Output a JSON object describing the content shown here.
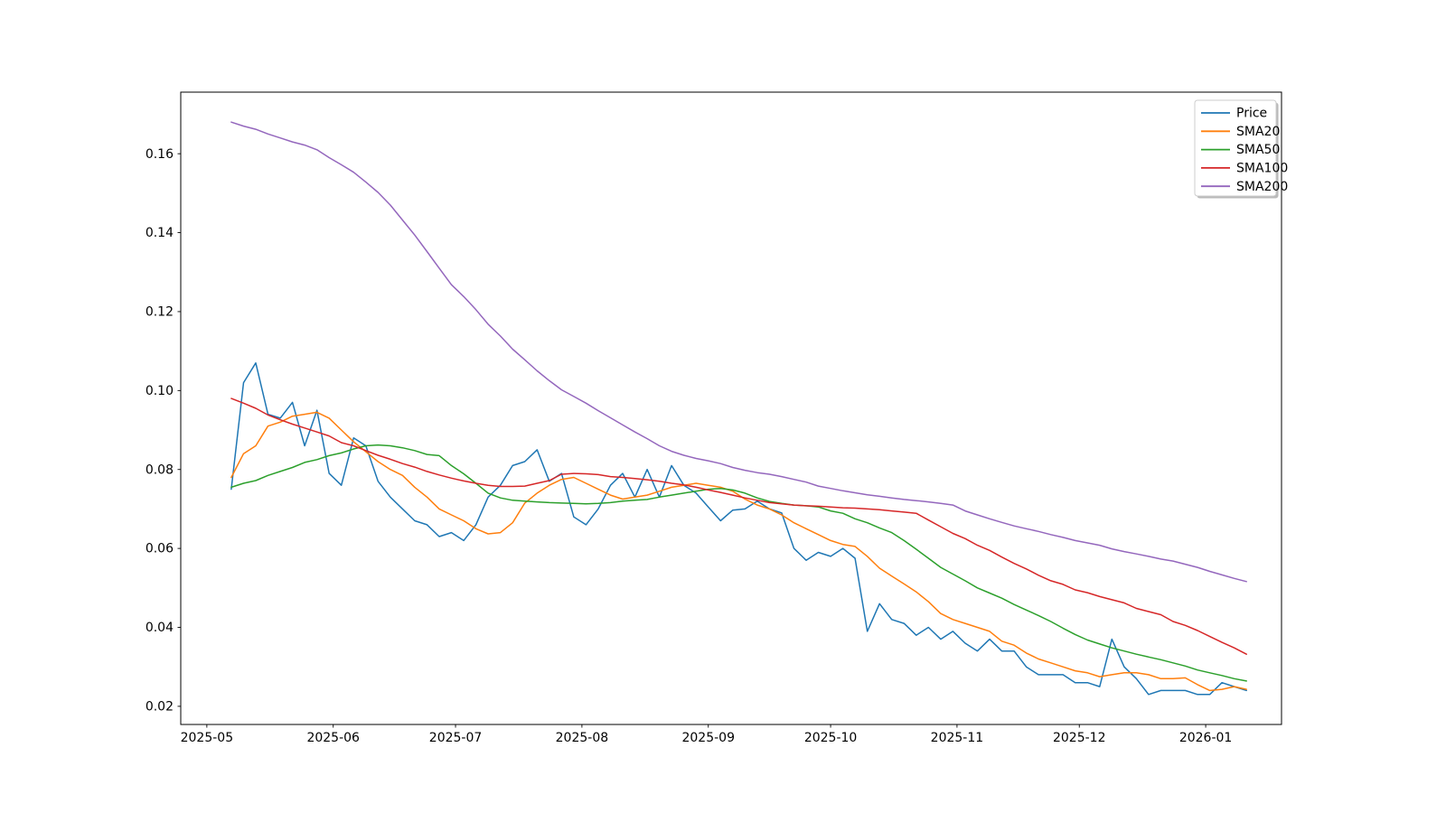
{
  "figure": {
    "background": "#ffffff",
    "axis_color": "#000000",
    "legend_border_color": "#cccccc",
    "legend_background": "#ffffff",
    "legend_shadow_color": "#bababa"
  },
  "chart_data": {
    "type": "line",
    "title": "",
    "xlabel": "",
    "ylabel": "",
    "grid": false,
    "legend_position": "upper right",
    "x_unit": "days since 2025-05-07",
    "x_start_day": 0,
    "x_step_days": 3,
    "n_points": 84,
    "xlim_days": [
      -12.4,
      257.6
    ],
    "ylim": [
      0.0154,
      0.1756
    ],
    "x_ticks": [
      {
        "day": -6,
        "label": "2025-05"
      },
      {
        "day": 25,
        "label": "2025-06"
      },
      {
        "day": 55,
        "label": "2025-07"
      },
      {
        "day": 86,
        "label": "2025-08"
      },
      {
        "day": 117,
        "label": "2025-09"
      },
      {
        "day": 147,
        "label": "2025-10"
      },
      {
        "day": 178,
        "label": "2025-11"
      },
      {
        "day": 208,
        "label": "2025-12"
      },
      {
        "day": 239,
        "label": "2026-01"
      }
    ],
    "y_ticks": [
      {
        "value": 0.02,
        "label": "0.02"
      },
      {
        "value": 0.04,
        "label": "0.04"
      },
      {
        "value": 0.06,
        "label": "0.06"
      },
      {
        "value": 0.08,
        "label": "0.08"
      },
      {
        "value": 0.1,
        "label": "0.10"
      },
      {
        "value": 0.12,
        "label": "0.12"
      },
      {
        "value": 0.14,
        "label": "0.14"
      },
      {
        "value": 0.16,
        "label": "0.16"
      }
    ],
    "series": [
      {
        "name": "Price",
        "color": "#1f77b4",
        "values": [
          0.075,
          0.102,
          0.107,
          0.094,
          0.093,
          0.097,
          0.086,
          0.095,
          0.079,
          0.076,
          0.088,
          0.086,
          0.077,
          0.073,
          0.07,
          0.067,
          0.066,
          0.063,
          0.064,
          0.062,
          0.066,
          0.073,
          0.076,
          0.081,
          0.082,
          0.085,
          0.077,
          0.079,
          0.068,
          0.066,
          0.07,
          0.076,
          0.079,
          0.073,
          0.08,
          0.073,
          0.081,
          0.076,
          0.074,
          0.0705,
          0.067,
          0.0697,
          0.07,
          0.072,
          0.07,
          0.069,
          0.06,
          0.057,
          0.059,
          0.058,
          0.06,
          0.0575,
          0.039,
          0.046,
          0.042,
          0.041,
          0.038,
          0.04,
          0.037,
          0.039,
          0.036,
          0.034,
          0.037,
          0.034,
          0.034,
          0.03,
          0.028,
          0.028,
          0.028,
          0.026,
          0.026,
          0.025,
          0.037,
          0.03,
          0.027,
          0.023,
          0.024,
          0.024,
          0.024,
          0.023,
          0.023,
          0.026,
          0.025,
          0.024
        ]
      },
      {
        "name": "SMA20",
        "color": "#ff7f0e",
        "values": [
          0.078,
          0.084,
          0.086,
          0.091,
          0.092,
          0.0935,
          0.094,
          0.0945,
          0.093,
          0.09,
          0.087,
          0.0845,
          0.082,
          0.08,
          0.0785,
          0.0755,
          0.073,
          0.07,
          0.0685,
          0.067,
          0.065,
          0.0637,
          0.064,
          0.0665,
          0.0715,
          0.074,
          0.076,
          0.0775,
          0.078,
          0.0765,
          0.075,
          0.0735,
          0.0725,
          0.073,
          0.0735,
          0.0745,
          0.0755,
          0.076,
          0.0765,
          0.076,
          0.0755,
          0.0745,
          0.0725,
          0.071,
          0.07,
          0.0685,
          0.0665,
          0.065,
          0.0635,
          0.062,
          0.061,
          0.0605,
          0.058,
          0.055,
          0.053,
          0.051,
          0.049,
          0.0465,
          0.0435,
          0.042,
          0.041,
          0.04,
          0.039,
          0.0365,
          0.0355,
          0.0335,
          0.032,
          0.031,
          0.03,
          0.029,
          0.0285,
          0.0275,
          0.028,
          0.0285,
          0.0285,
          0.028,
          0.027,
          0.027,
          0.0272,
          0.0255,
          0.024,
          0.0243,
          0.025,
          0.0243
        ]
      },
      {
        "name": "SMA50",
        "color": "#2ca02c",
        "values": [
          0.0755,
          0.0765,
          0.0772,
          0.0785,
          0.0795,
          0.0805,
          0.0818,
          0.0825,
          0.0835,
          0.0842,
          0.0852,
          0.086,
          0.0862,
          0.086,
          0.0855,
          0.0848,
          0.0838,
          0.0835,
          0.081,
          0.0789,
          0.0765,
          0.074,
          0.0728,
          0.0722,
          0.072,
          0.0718,
          0.0716,
          0.0715,
          0.0714,
          0.0713,
          0.0714,
          0.0716,
          0.072,
          0.0722,
          0.0724,
          0.073,
          0.0735,
          0.074,
          0.0745,
          0.075,
          0.0752,
          0.0748,
          0.074,
          0.0728,
          0.0719,
          0.0714,
          0.071,
          0.0708,
          0.0705,
          0.0695,
          0.0689,
          0.0675,
          0.0665,
          0.0652,
          0.064,
          0.062,
          0.0598,
          0.0575,
          0.0552,
          0.0535,
          0.0518,
          0.05,
          0.0487,
          0.0474,
          0.0458,
          0.0444,
          0.043,
          0.0415,
          0.0398,
          0.0382,
          0.0368,
          0.0358,
          0.0348,
          0.034,
          0.0332,
          0.0325,
          0.0318,
          0.031,
          0.0302,
          0.0292,
          0.0285,
          0.0278,
          0.027,
          0.0264
        ]
      },
      {
        "name": "SMA100",
        "color": "#d62728",
        "values": [
          0.098,
          0.0968,
          0.0955,
          0.0938,
          0.0926,
          0.0915,
          0.0905,
          0.0895,
          0.0885,
          0.0868,
          0.086,
          0.0848,
          0.0836,
          0.0826,
          0.0815,
          0.0806,
          0.0795,
          0.0786,
          0.0778,
          0.0771,
          0.0765,
          0.076,
          0.0757,
          0.0757,
          0.0758,
          0.0765,
          0.0772,
          0.0788,
          0.079,
          0.0789,
          0.0787,
          0.0782,
          0.078,
          0.0777,
          0.0774,
          0.077,
          0.0765,
          0.0761,
          0.0755,
          0.0748,
          0.0742,
          0.0735,
          0.0728,
          0.0722,
          0.0716,
          0.0713,
          0.071,
          0.0708,
          0.0707,
          0.0705,
          0.0703,
          0.0702,
          0.07,
          0.0698,
          0.0695,
          0.0692,
          0.0689,
          0.0672,
          0.0655,
          0.0638,
          0.0625,
          0.0608,
          0.0595,
          0.0578,
          0.0562,
          0.0548,
          0.0532,
          0.0518,
          0.0509,
          0.0495,
          0.0488,
          0.0478,
          0.047,
          0.0462,
          0.0448,
          0.044,
          0.0432,
          0.0415,
          0.0405,
          0.0392,
          0.0377,
          0.0362,
          0.0348,
          0.0332
        ]
      },
      {
        "name": "SMA200",
        "color": "#9467bd",
        "values": [
          0.168,
          0.167,
          0.1662,
          0.165,
          0.164,
          0.163,
          0.1622,
          0.161,
          0.159,
          0.1572,
          0.1553,
          0.1528,
          0.1502,
          0.147,
          0.1432,
          0.1394,
          0.1352,
          0.131,
          0.1268,
          0.1238,
          0.1205,
          0.1168,
          0.1138,
          0.1105,
          0.1078,
          0.105,
          0.1025,
          0.1002,
          0.0985,
          0.0968,
          0.0949,
          0.0931,
          0.0913,
          0.0895,
          0.0878,
          0.086,
          0.0846,
          0.0836,
          0.0828,
          0.0822,
          0.0815,
          0.0805,
          0.0798,
          0.0792,
          0.0788,
          0.0782,
          0.0775,
          0.0768,
          0.0758,
          0.0752,
          0.0746,
          0.0741,
          0.0736,
          0.0732,
          0.0728,
          0.0724,
          0.0721,
          0.0718,
          0.0714,
          0.071,
          0.0695,
          0.0685,
          0.0675,
          0.0666,
          0.0657,
          0.065,
          0.0643,
          0.0635,
          0.0628,
          0.062,
          0.0614,
          0.0608,
          0.0599,
          0.0592,
          0.0586,
          0.058,
          0.0573,
          0.0568,
          0.056,
          0.0552,
          0.0542,
          0.0533,
          0.0524,
          0.0516
        ]
      }
    ]
  }
}
